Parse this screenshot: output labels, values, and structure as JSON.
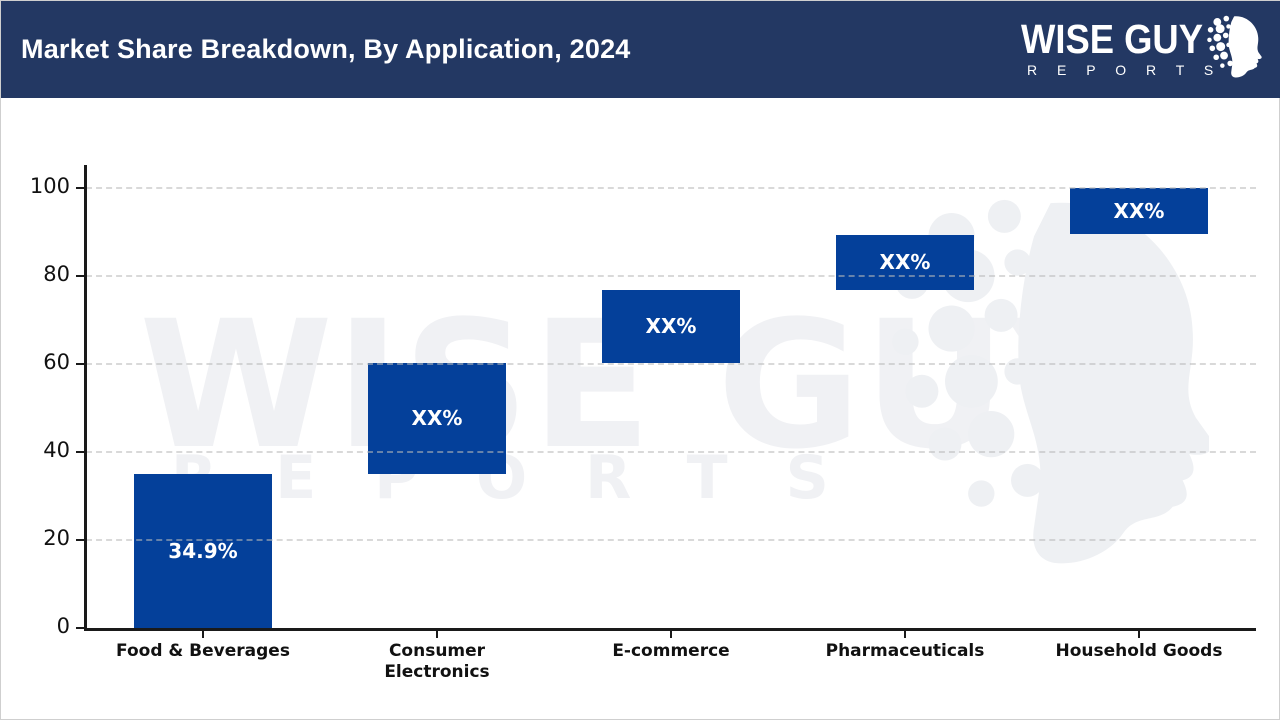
{
  "header": {
    "title": "Market Share Breakdown, By Application, 2024",
    "logo": {
      "line1": "WISE GUY",
      "line2": "R E P O R T S"
    }
  },
  "watermark": {
    "line1": "WISE GUY",
    "line2": "REPORTS"
  },
  "colors": {
    "header_bg": "#233863",
    "bar": "#04409a",
    "axis": "#1a1a1a",
    "grid": "#bdbdbd",
    "watermark": "#f0f1f4",
    "bar_label_text": "#ffffff",
    "tick_text": "#111111",
    "title_text": "#ffffff"
  },
  "chart_data": {
    "type": "bar",
    "subtype": "waterfall",
    "title": "Market Share Breakdown, By Application, 2024",
    "xlabel": "",
    "ylabel": "",
    "ylim": [
      0,
      105
    ],
    "yticks": [
      0,
      20,
      40,
      60,
      80,
      100
    ],
    "grid": "horizontal-dashed",
    "legend": "none",
    "categories": [
      "Food & Beverages",
      "Consumer Electronics",
      "E-commerce",
      "Pharmaceuticals",
      "Household Goods"
    ],
    "segments": [
      {
        "category": "Food & Beverages",
        "start": 0.0,
        "end": 34.9,
        "label": "34.9%"
      },
      {
        "category": "Consumer Electronics",
        "start": 35.1,
        "end": 60.2,
        "label": "XX%"
      },
      {
        "category": "E-commerce",
        "start": 60.2,
        "end": 76.9,
        "label": "XX%"
      },
      {
        "category": "Pharmaceuticals",
        "start": 76.9,
        "end": 89.3,
        "label": "XX%"
      },
      {
        "category": "Household Goods",
        "start": 89.6,
        "end": 100.0,
        "label": "XX%"
      }
    ]
  }
}
